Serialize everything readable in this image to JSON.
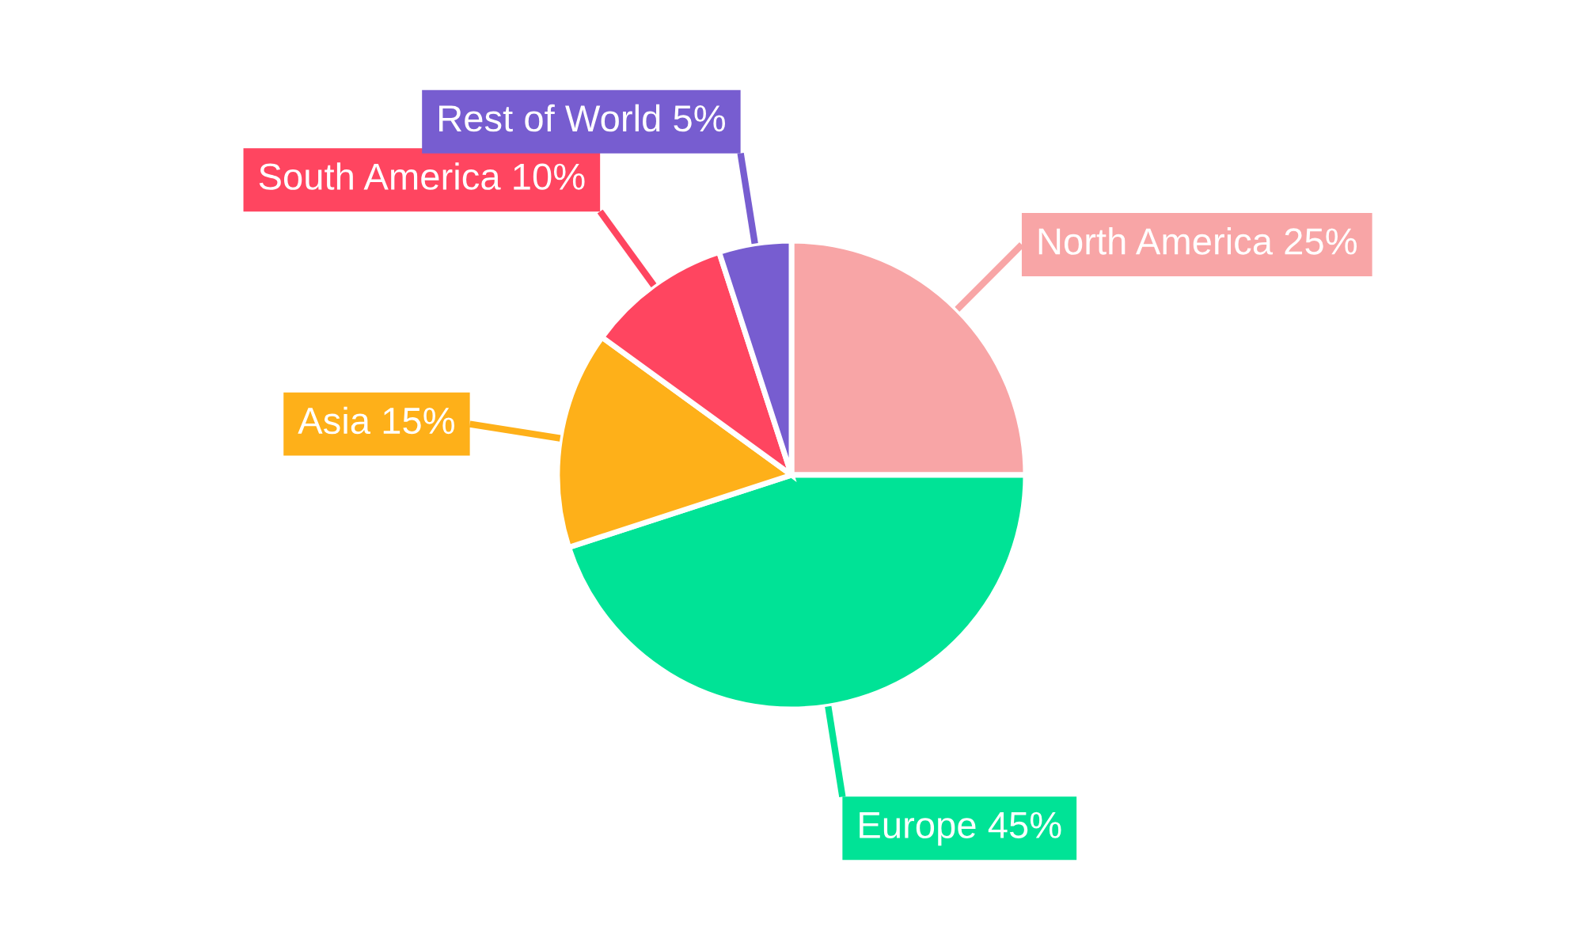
{
  "chart_data": {
    "type": "pie",
    "categories": [
      "North America",
      "Europe",
      "Asia",
      "South America",
      "Rest of World"
    ],
    "values": [
      25,
      45,
      15,
      10,
      5
    ],
    "colors": [
      "#f8a5a6",
      "#00e396",
      "#feb019",
      "#ff4560",
      "#775dd0"
    ],
    "value_labels": [
      "25%",
      "45%",
      "15%",
      "10%",
      "5%"
    ]
  }
}
